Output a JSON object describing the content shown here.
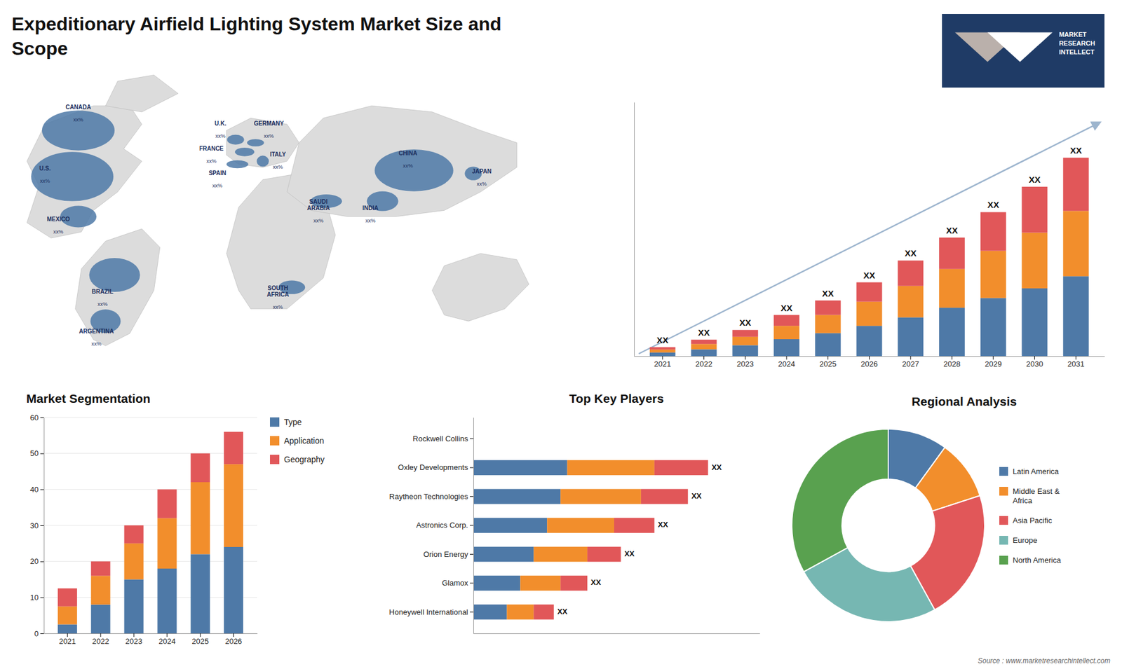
{
  "chart_data": [
    {
      "type": "bar",
      "title": "Expeditionary Airfield Lighting System Market Size and\nScope",
      "annotations": [
        "MARKET\nRESEARCH\nINTELLECT",
        "Source : www.marketresearchintellect.com"
      ],
      "categories": [
        "2021",
        "2022",
        "2023",
        "2024",
        "2025",
        "2026",
        "2027",
        "2028",
        "2029",
        "2030",
        "2031"
      ],
      "stacked": true,
      "series": [
        {
          "values": [
            1.5,
            2.8,
            4.5,
            7.0,
            9.5,
            12.5,
            16.0,
            20.0,
            24.0,
            28.0,
            33.0
          ]
        },
        {
          "values": [
            1.2,
            2.2,
            3.5,
            5.5,
            7.5,
            10.0,
            13.0,
            16.0,
            19.5,
            23.0,
            27.0
          ]
        },
        {
          "values": [
            1.0,
            1.8,
            2.8,
            4.5,
            6.0,
            8.0,
            10.5,
            13.0,
            16.0,
            19.0,
            22.0
          ],
          "value_labels": [
            "XX",
            "XX",
            "XX",
            "XX",
            "XX",
            "XX",
            "XX",
            "XX",
            "XX",
            "XX",
            "XX"
          ]
        }
      ],
      "ylim": [
        0,
        104.96
      ],
      "yticks": [],
      "tick_labels": "x",
      "grid": false,
      "data_labels": true
    },
    {
      "type": "map",
      "categories": [
        "CANADA",
        "U.S.",
        "MEXICO",
        "BRAZIL",
        "ARGENTINA",
        "U.K.",
        "FRANCE",
        "SPAIN",
        "GERMANY",
        "ITALY",
        "SAUDI\nARABIA",
        "SOUTH\nAFRICA",
        "CHINA",
        "INDIA",
        "JAPAN"
      ],
      "annotations": [
        "xx%",
        "xx%",
        "xx%",
        "xx%",
        "xx%",
        "xx%",
        "xx%",
        "xx%",
        "xx%",
        "xx%",
        "xx%",
        "xx%",
        "xx%",
        "xx%",
        "xx%"
      ]
    },
    {
      "type": "bar",
      "title": "Market Segmentation",
      "categories": [
        "2021",
        "2022",
        "2023",
        "2024",
        "2025",
        "2026"
      ],
      "stacked": true,
      "series": [
        {
          "name": "Type",
          "values": [
            2.5,
            8.0,
            15.0,
            18.0,
            22.0,
            24.0
          ]
        },
        {
          "name": "Application",
          "values": [
            5.0,
            8.0,
            10.0,
            14.0,
            20.0,
            23.0
          ]
        },
        {
          "name": "Geography",
          "values": [
            5.0,
            4.0,
            5.0,
            8.0,
            8.0,
            9.0
          ]
        }
      ],
      "ylim": [
        0,
        60
      ],
      "yticks": [
        0,
        10,
        20,
        30,
        40,
        50,
        60
      ],
      "grid": true,
      "legend": "right"
    },
    {
      "type": "bar",
      "orientation": "horizontal",
      "title": "Top Key Players",
      "categories": [
        "Rockwell Collins",
        "Oxley Developments",
        "Raytheon Technologies",
        "Astronics Corp.",
        "Orion Energy",
        "Glamox",
        "Honeywell International"
      ],
      "stacked": true,
      "series": [
        {
          "values": [
            0.0,
            7.0,
            6.5,
            5.5,
            4.5,
            3.5,
            2.5
          ]
        },
        {
          "values": [
            0.0,
            6.5,
            6.0,
            5.0,
            4.0,
            3.0,
            2.0
          ]
        },
        {
          "values": [
            0.0,
            4.0,
            3.5,
            3.0,
            2.5,
            2.0,
            1.5
          ],
          "value_labels": [
            null,
            "XX",
            "XX",
            "XX",
            "XX",
            "XX",
            "XX"
          ]
        }
      ],
      "xlim": [
        0,
        21.35
      ],
      "xticks": [],
      "tick_labels": "y",
      "grid": false,
      "data_labels": true
    },
    {
      "type": "pie",
      "title": "Regional Analysis",
      "categories": [
        "Latin America",
        "Middle East &\nAfrica",
        "Asia Pacific",
        "Europe",
        "North America"
      ],
      "values": [
        10,
        10,
        22,
        25,
        33
      ],
      "legend": "right"
    }
  ]
}
